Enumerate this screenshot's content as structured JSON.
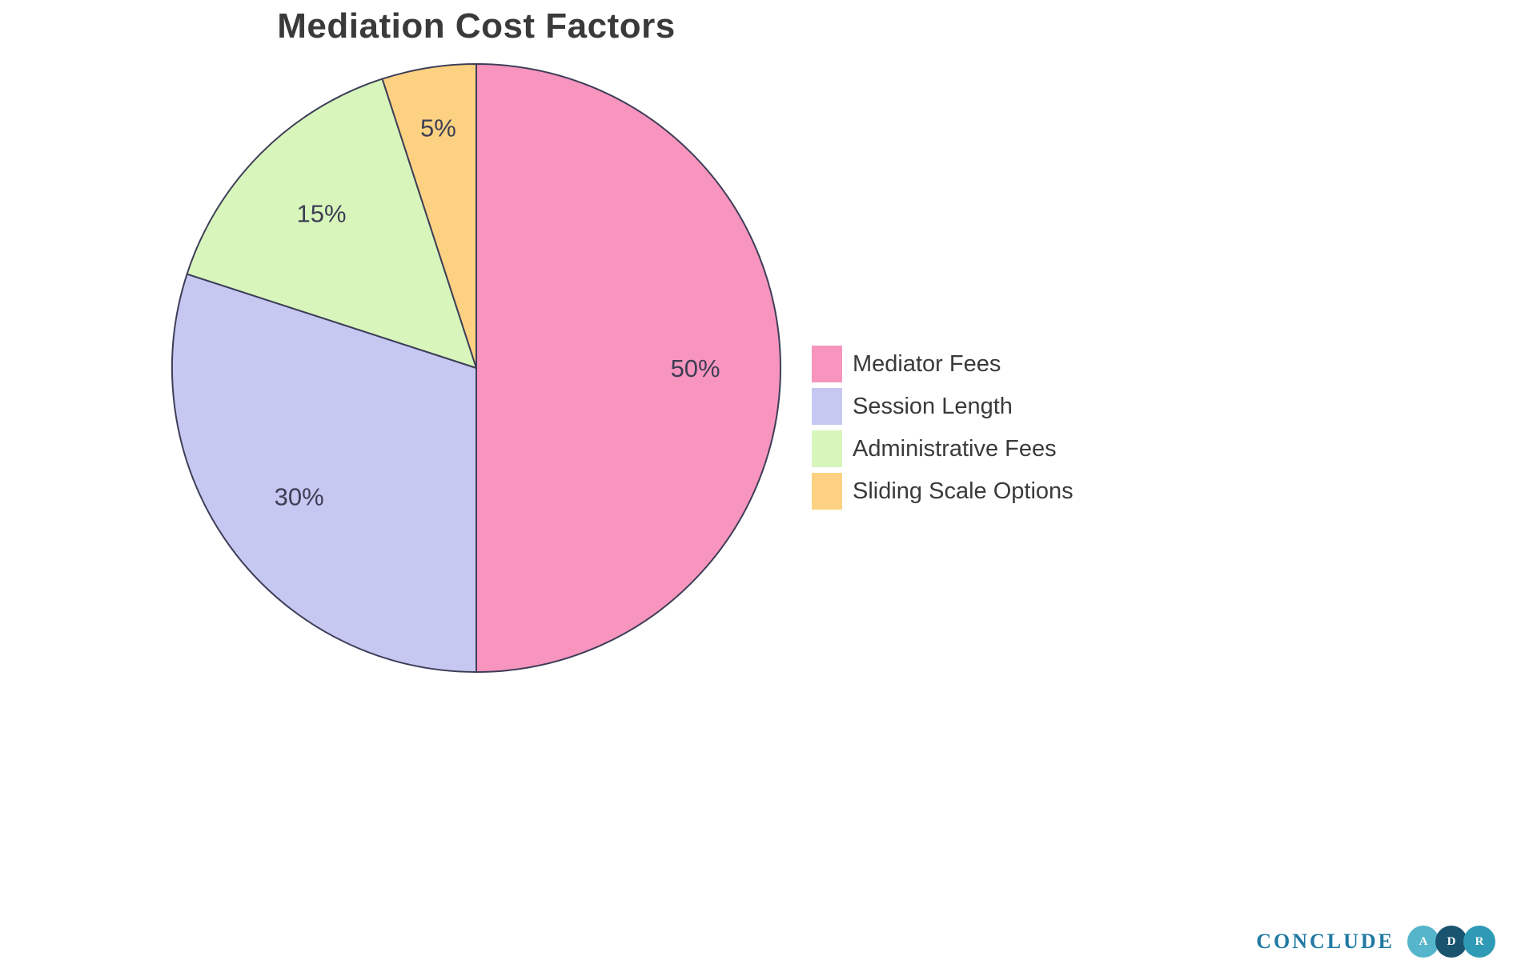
{
  "chart_data": {
    "type": "pie",
    "title": "Mediation Cost Factors",
    "labels": [
      "Mediator Fees",
      "Session Length",
      "Administrative Fees",
      "Sliding Scale Options"
    ],
    "values": [
      50,
      30,
      15,
      5
    ],
    "percent_labels": [
      "50%",
      "30%",
      "15%",
      "5%"
    ],
    "colors": [
      "#F795BE",
      "#C6C8F2",
      "#D8F6BC",
      "#FCD282"
    ],
    "stroke_color": "#3E3E58",
    "start_angle": "top",
    "direction": "clockwise",
    "legend_position": "right"
  },
  "legend": {
    "items": [
      {
        "label": "Mediator Fees",
        "color": "#F795BE"
      },
      {
        "label": "Session Length",
        "color": "#C6C8F2"
      },
      {
        "label": "Administrative Fees",
        "color": "#D8F6BC"
      },
      {
        "label": "Sliding Scale Options",
        "color": "#FCD282"
      }
    ]
  },
  "branding": {
    "name": "CONCLUDE",
    "color": "#2079A2",
    "badges": [
      {
        "letter": "A",
        "color": "#55B6CB"
      },
      {
        "letter": "D",
        "color": "#19546E"
      },
      {
        "letter": "R",
        "color": "#2E9AB5"
      }
    ]
  }
}
